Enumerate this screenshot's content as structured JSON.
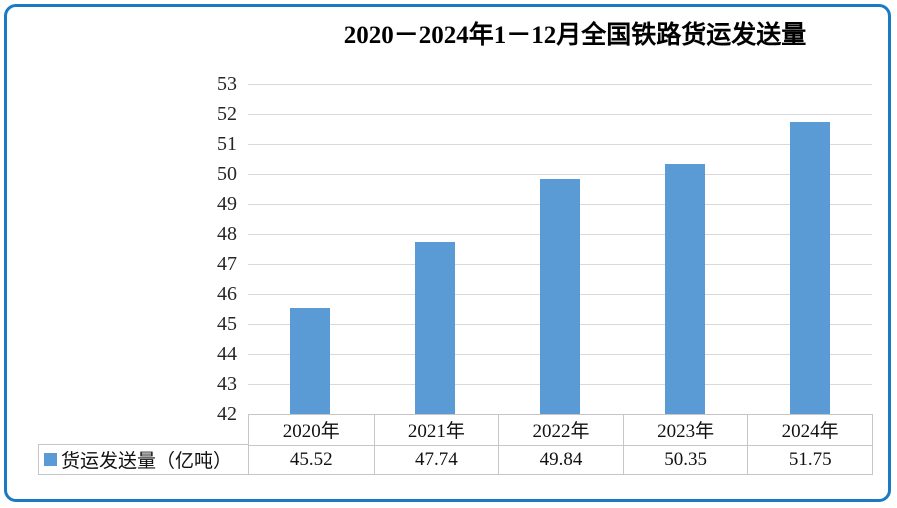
{
  "chart_data": {
    "type": "bar",
    "title": "2020－2024年1－12月全国铁路货运发送量",
    "categories": [
      "2020年",
      "2021年",
      "2022年",
      "2023年",
      "2024年"
    ],
    "series": [
      {
        "name": "货运发送量（亿吨）",
        "values": [
          45.52,
          47.74,
          49.84,
          50.35,
          51.75
        ],
        "value_labels": [
          "45.52",
          "47.74",
          "49.84",
          "50.35",
          "51.75"
        ],
        "color": "#5B9BD5"
      }
    ],
    "xlabel": "",
    "ylabel": "",
    "ylim": [
      42,
      53
    ],
    "yticks": [
      42,
      43,
      44,
      45,
      46,
      47,
      48,
      49,
      50,
      51,
      52,
      53
    ],
    "grid": true,
    "legend_position": "data-table-left",
    "data_table_shown": true
  },
  "legend": {
    "marker": "filled-square"
  },
  "colors": {
    "bar": "#5B9BD5",
    "frame_border": "#1B7AC4",
    "gridline": "#D9D9D9",
    "table_border": "#C6C6C6",
    "text": "#1A1A1A"
  }
}
